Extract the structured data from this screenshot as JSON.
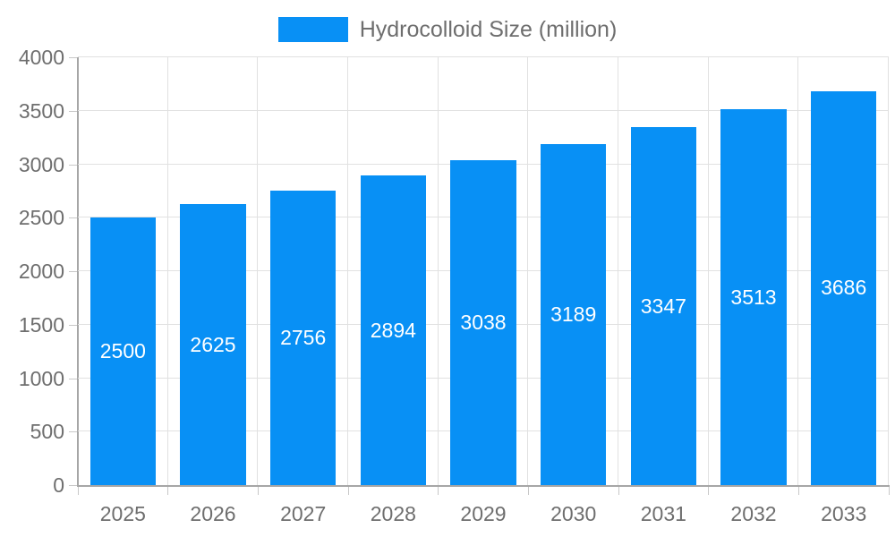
{
  "legend": {
    "label": "Hydrocolloid Size (million)"
  },
  "colors": {
    "bar": "#0890F5",
    "bar_label": "#FFFFFF",
    "axis_line": "#A6A6A6",
    "grid_line": "#E1E1E1",
    "tick_mark": "#C8C8C8",
    "tick_text": "#6E6E6E",
    "legend_text": "#6E6E6E",
    "background": "#FFFFFF"
  },
  "chart_data": {
    "type": "bar",
    "title": "",
    "categories": [
      "2025",
      "2026",
      "2027",
      "2028",
      "2029",
      "2030",
      "2031",
      "2032",
      "2033"
    ],
    "series": [
      {
        "name": "Hydrocolloid Size (million)",
        "values": [
          2500,
          2625,
          2756,
          2894,
          3038,
          3189,
          3347,
          3513,
          3686
        ]
      }
    ],
    "xlabel": "",
    "ylabel": "",
    "ylim": [
      0,
      4000
    ],
    "yticks": [
      0,
      500,
      1000,
      1500,
      2000,
      2500,
      3000,
      3500,
      4000
    ],
    "grid": true,
    "legend_position": "top",
    "value_labels": "inside-center"
  }
}
